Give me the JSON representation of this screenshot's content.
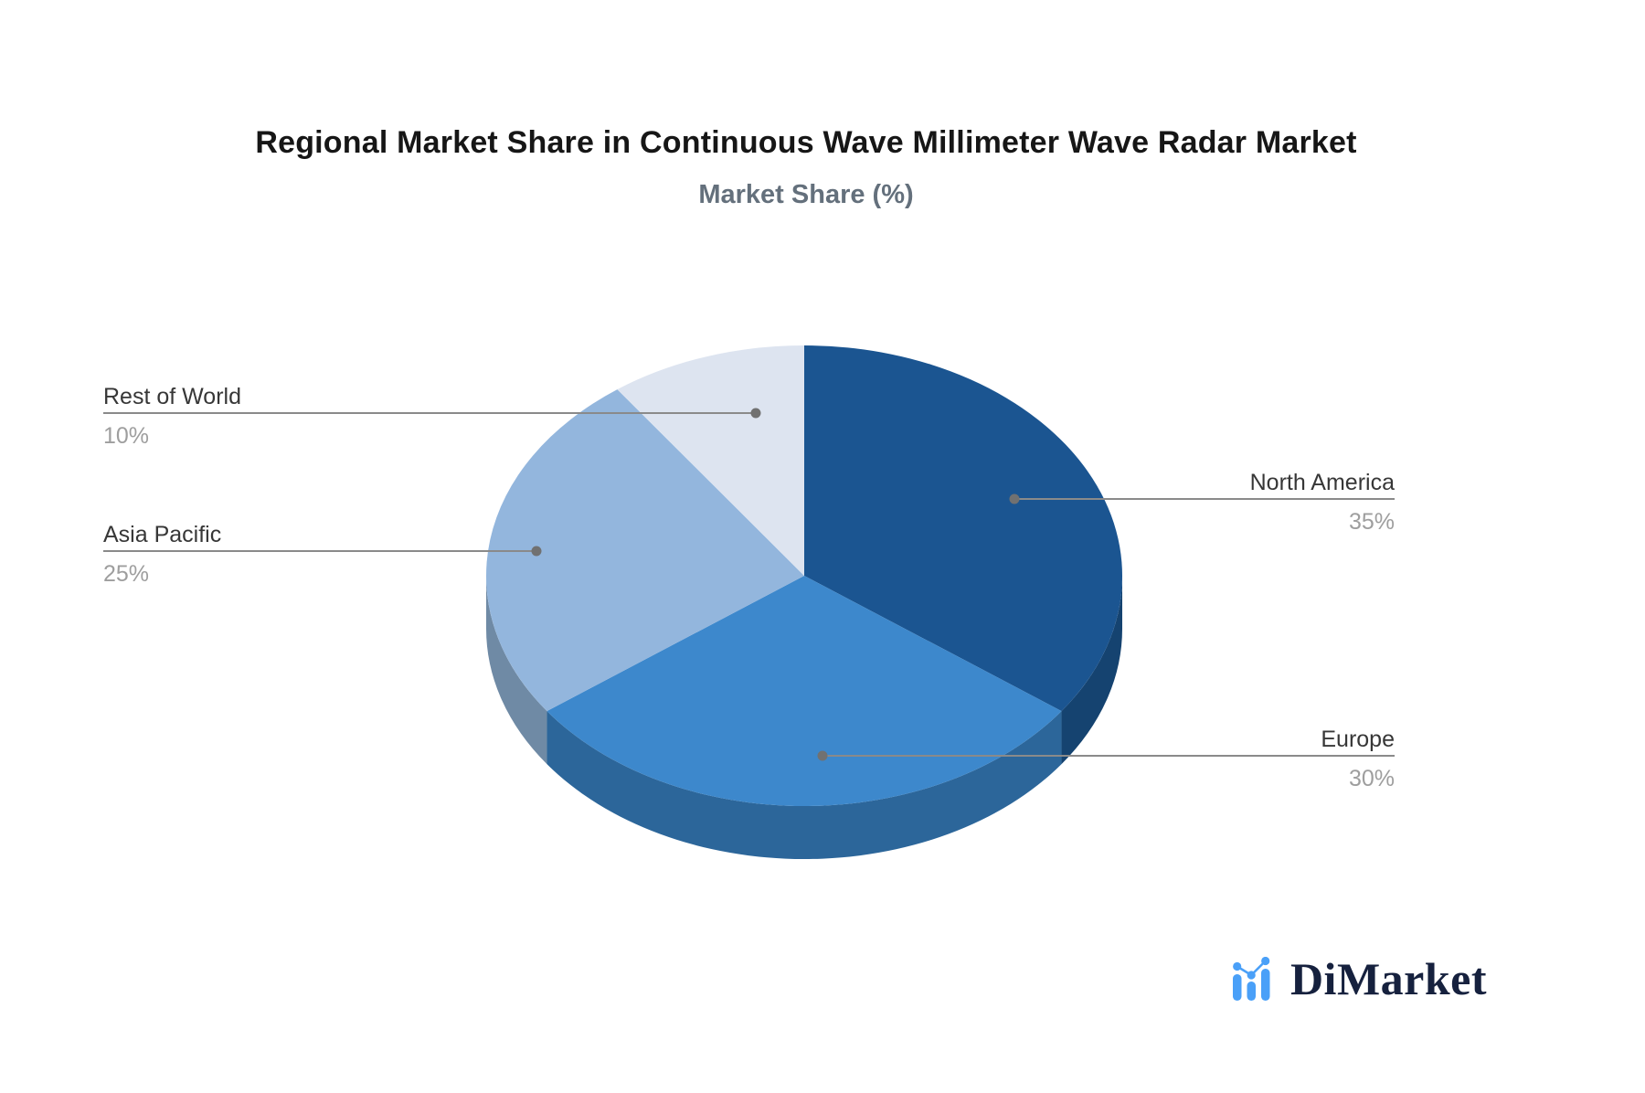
{
  "header": {
    "title": "Regional Market Share in Continuous Wave Millimeter Wave Radar Market",
    "subtitle": "Market Share (%)"
  },
  "chart_data": {
    "type": "pie",
    "effect": "3d",
    "title": "Regional Market Share in Continuous Wave Millimeter Wave Radar Market",
    "subtitle": "Market Share (%)",
    "unit": "%",
    "start_angle_deg": 0,
    "direction": "clockwise",
    "categories": [
      "North America",
      "Europe",
      "Asia Pacific",
      "Rest of World"
    ],
    "values": [
      35,
      30,
      25,
      10
    ],
    "slices": [
      {
        "label": "North America",
        "value": 35,
        "display_value": "35%",
        "color": "#1b5591",
        "side_color": "#154370"
      },
      {
        "label": "Europe",
        "value": 30,
        "display_value": "30%",
        "color": "#3d88cc",
        "side_color": "#2c669a"
      },
      {
        "label": "Asia Pacific",
        "value": 25,
        "display_value": "25%",
        "color": "#93b6dd",
        "side_color": "#6f8aa5"
      },
      {
        "label": "Rest of World",
        "value": 10,
        "display_value": "10%",
        "color": "#dde4f0",
        "side_color": "#b7c2d3"
      }
    ],
    "legend_position": "callout-labels",
    "leader_line_color": "#8a8a8a",
    "leader_dot_color": "#717171"
  },
  "branding": {
    "logo_text": "DiMarket",
    "logo_icon": "bar-line-chart-icon",
    "accent_color": "#4aa0f8",
    "text_color": "#16213e"
  }
}
